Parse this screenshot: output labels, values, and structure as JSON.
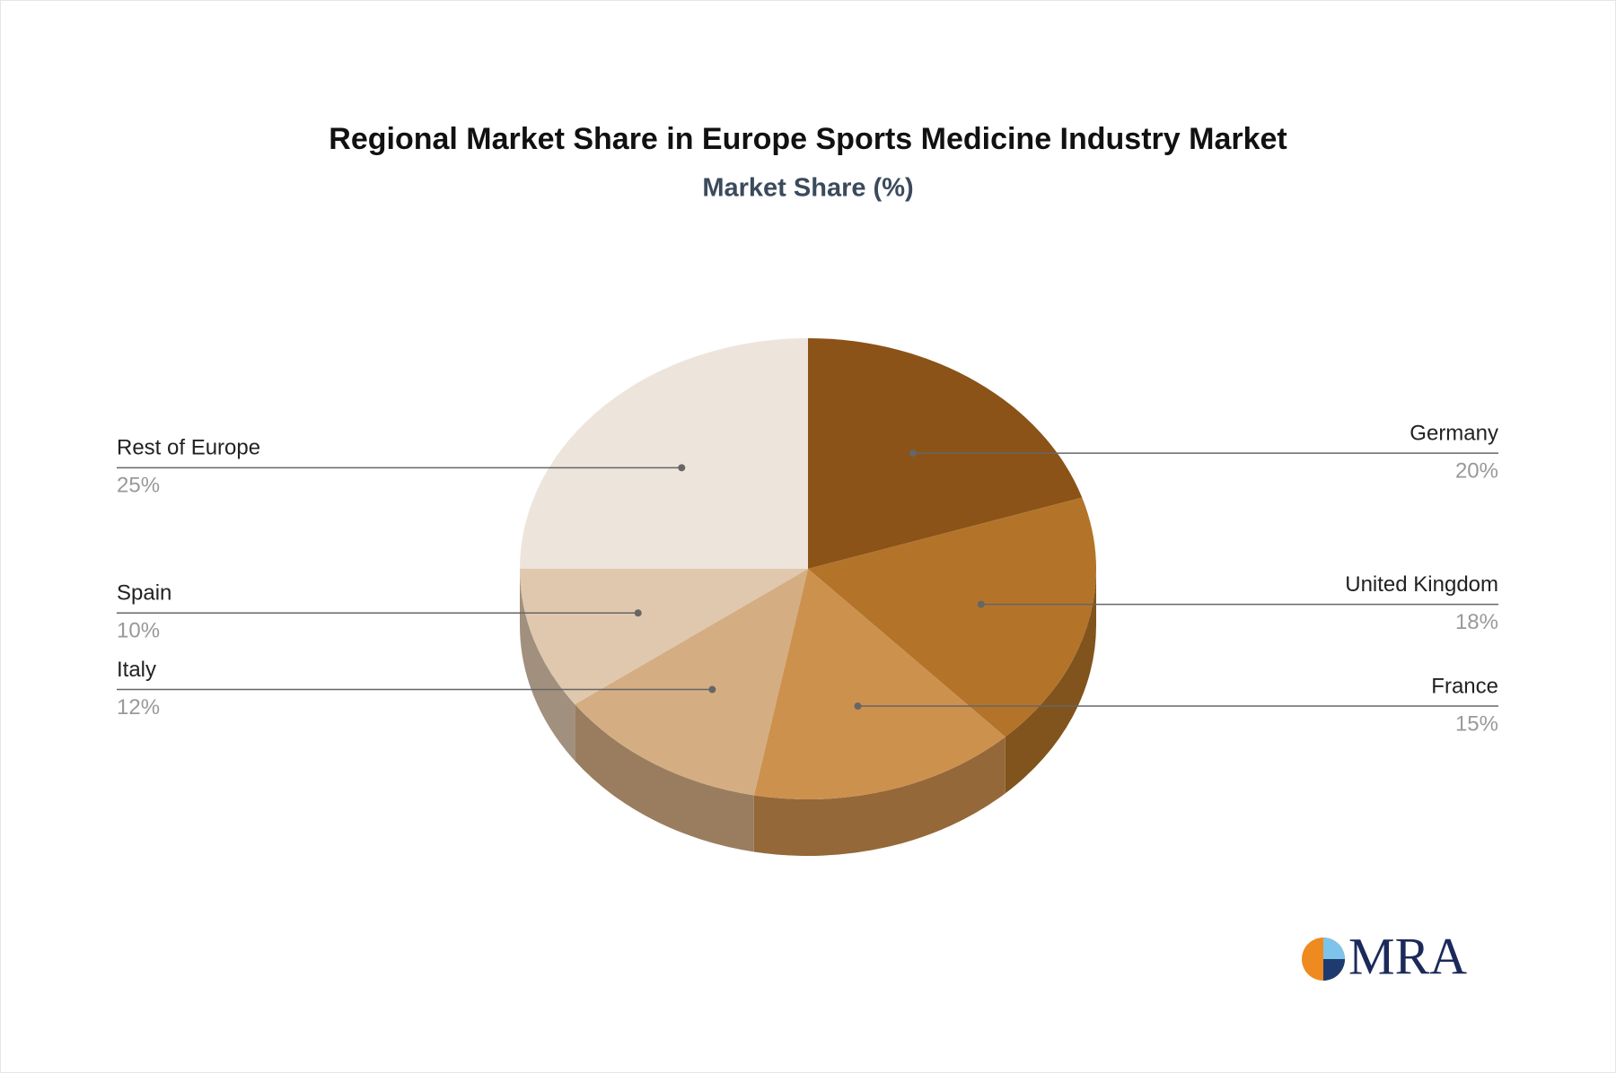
{
  "chart_data": {
    "type": "pie3d",
    "title": "Regional Market Share in Europe Sports Medicine Industry Market",
    "subtitle": "Market Share (%)",
    "categories": [
      "Germany",
      "United Kingdom",
      "France",
      "Italy",
      "Spain",
      "Rest of Europe"
    ],
    "values": [
      20,
      18,
      15,
      12,
      10,
      25
    ],
    "value_labels": [
      "20%",
      "18%",
      "15%",
      "12%",
      "10%",
      "25%"
    ],
    "colors": [
      "#8b5318",
      "#b3742a",
      "#cd914e",
      "#d4ae82",
      "#e0c8ae",
      "#ede4db"
    ]
  },
  "logo": "MRA"
}
